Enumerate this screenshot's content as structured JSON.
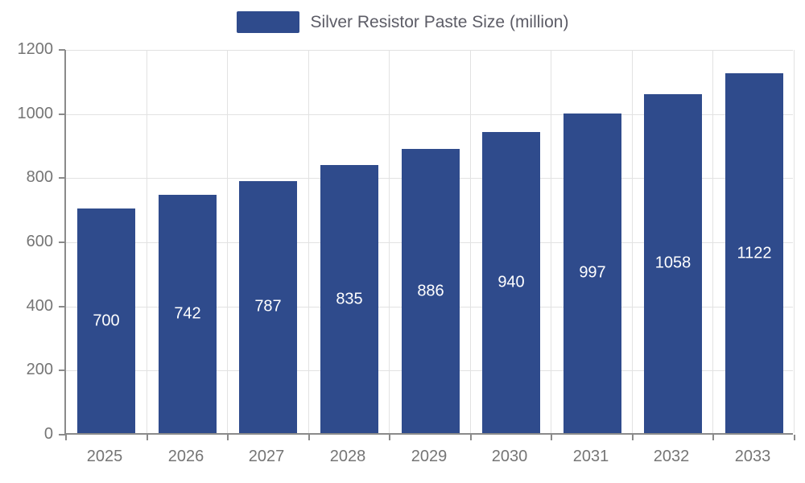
{
  "chart_data": {
    "type": "bar",
    "title": "",
    "legend_label": "Silver Resistor Paste Size (million)",
    "categories": [
      "2025",
      "2026",
      "2027",
      "2028",
      "2029",
      "2030",
      "2031",
      "2032",
      "2033"
    ],
    "values": [
      700,
      742,
      787,
      835,
      886,
      940,
      997,
      1058,
      1122
    ],
    "xlabel": "",
    "ylabel": "",
    "ylim": [
      0,
      1200
    ],
    "yticks": [
      0,
      200,
      400,
      600,
      800,
      1000,
      1200
    ],
    "grid": true,
    "legend_position": "top",
    "colors": {
      "bar": "#2f4b8c",
      "bar_value_text": "#ffffff",
      "axis_line": "#8a8a8a",
      "gridline": "#e2e2e2",
      "tick_text": "#757575",
      "legend_text": "#5c5c66"
    }
  }
}
